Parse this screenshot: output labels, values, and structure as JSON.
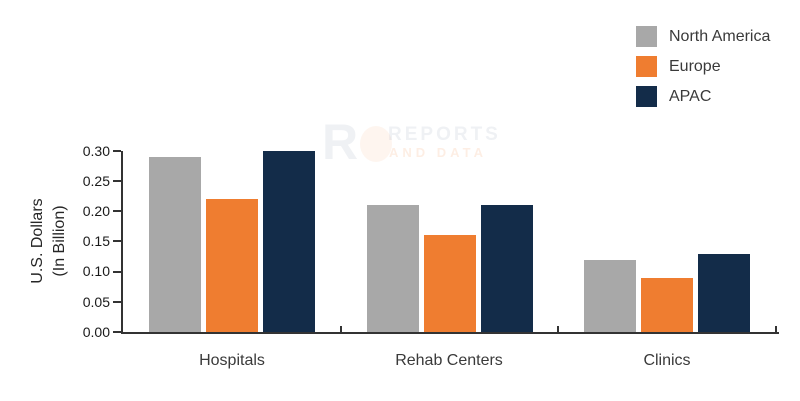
{
  "chart_data": {
    "type": "bar",
    "categories": [
      "Hospitals",
      "Rehab Centers",
      "Clinics"
    ],
    "series": [
      {
        "name": "North America",
        "color": "#a8a8a8",
        "values": [
          0.29,
          0.21,
          0.12
        ]
      },
      {
        "name": "Europe",
        "color": "#ef7d30",
        "values": [
          0.22,
          0.16,
          0.09
        ]
      },
      {
        "name": "APAC",
        "color": "#132c49",
        "values": [
          0.3,
          0.21,
          0.13
        ]
      }
    ],
    "ylabel_line1": "U.S. Dollars",
    "ylabel_line2": "(In Billion)",
    "ylim": [
      0,
      0.3
    ],
    "ytick_step": 0.05,
    "yticks": [
      "0.00",
      "0.05",
      "0.10",
      "0.15",
      "0.20",
      "0.25",
      "0.30"
    ],
    "grid": false,
    "legend_position": "top-right"
  },
  "watermark": {
    "logo_letter": "R",
    "line1": "REPORTS",
    "line2": "AND DATA"
  },
  "colors": {
    "axis": "#333333",
    "tick_text": "#1a1a1a",
    "label_text": "#3a3a3a"
  }
}
